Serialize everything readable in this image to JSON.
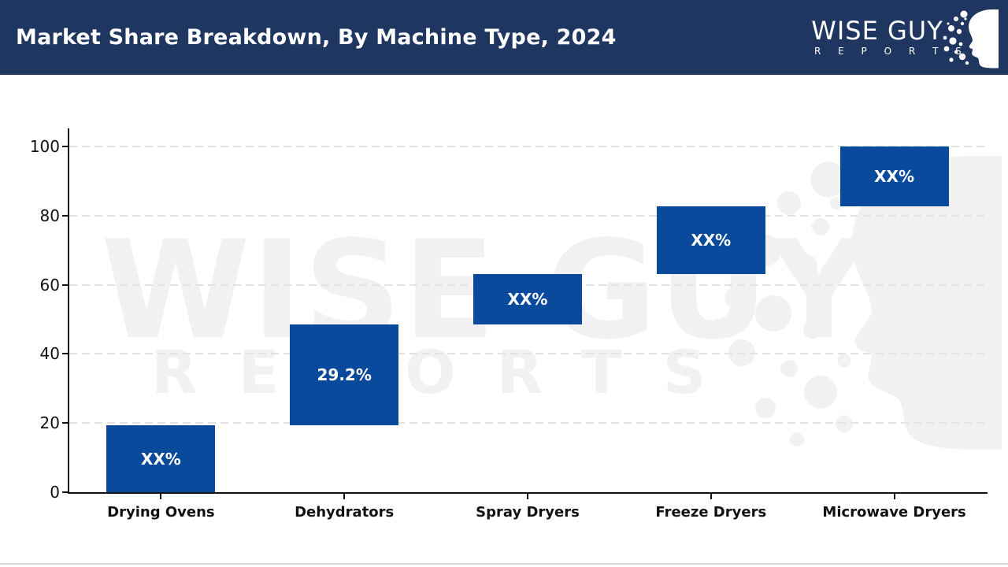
{
  "header": {
    "title": "Market Share Breakdown, By Machine Type, 2024",
    "logo": {
      "line1": "WISE GUY",
      "line2": "R E P O R T S"
    }
  },
  "watermark": {
    "line1": "WISE GUY",
    "line2": "REPORTS"
  },
  "chart_data": {
    "type": "bar",
    "subtype": "waterfall",
    "title": "Market Share Breakdown, By Machine Type, 2024",
    "categories": [
      "Drying Ovens",
      "Dehydrators",
      "Spray Dryers",
      "Freeze Dryers",
      "Microwave Dryers"
    ],
    "bars": [
      {
        "category": "Drying Ovens",
        "start": 0,
        "end": 19.3,
        "value_label": "XX%"
      },
      {
        "category": "Dehydrators",
        "start": 19.3,
        "end": 48.5,
        "value_label": "29.2%"
      },
      {
        "category": "Spray Dryers",
        "start": 48.5,
        "end": 63.2,
        "value_label": "XX%"
      },
      {
        "category": "Freeze Dryers",
        "start": 63.2,
        "end": 82.8,
        "value_label": "XX%"
      },
      {
        "category": "Microwave Dryers",
        "start": 82.8,
        "end": 100,
        "value_label": "XX%"
      }
    ],
    "ylim": [
      0,
      100
    ],
    "yticks": [
      0,
      20,
      40,
      60,
      80,
      100
    ],
    "xlabel": "",
    "ylabel": "",
    "grid": "horizontal-dashed",
    "legend": "none"
  },
  "colors": {
    "header_navy": "#1f3660",
    "bar_blue": "#0a4a9c",
    "bar_label": "#ffffff",
    "grid_gray": "#e3e3e3",
    "axis_black": "#111111",
    "watermark_gray": "#f1f1f3",
    "footer_line_gray": "#d9d9d9"
  }
}
